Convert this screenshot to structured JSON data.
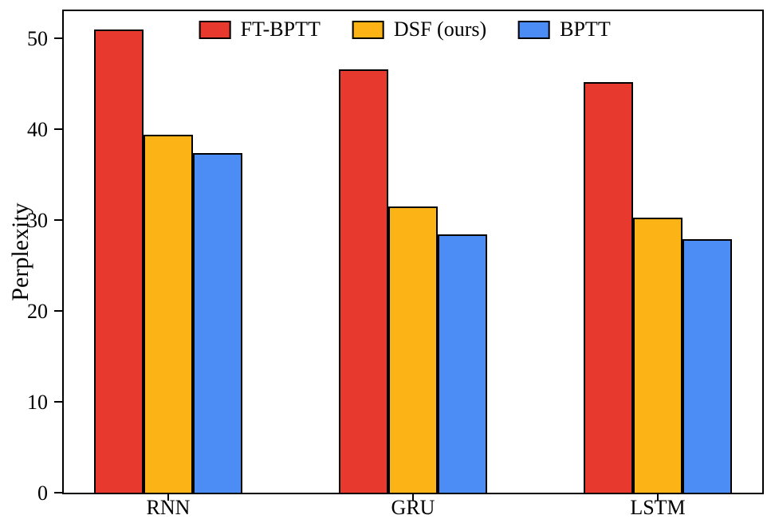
{
  "chart_data": {
    "type": "bar",
    "title": "",
    "xlabel": "",
    "ylabel": "Perplexity",
    "categories": [
      "RNN",
      "GRU",
      "LSTM"
    ],
    "series": [
      {
        "name": "FT-BPTT",
        "color": "#e8392f",
        "values": [
          51.0,
          46.6,
          45.2
        ]
      },
      {
        "name": "DSF (ours)",
        "color": "#fbb316",
        "values": [
          39.4,
          31.5,
          30.3
        ]
      },
      {
        "name": "BPTT",
        "color": "#4b8cf5",
        "values": [
          37.4,
          28.4,
          27.9
        ]
      }
    ],
    "ylim": [
      0,
      53
    ],
    "yticks": [
      0,
      10,
      20,
      30,
      40,
      50
    ],
    "grid": false,
    "legend_position": "upper center",
    "bar_edge_color": "#000000",
    "axis_color": "#000000"
  }
}
